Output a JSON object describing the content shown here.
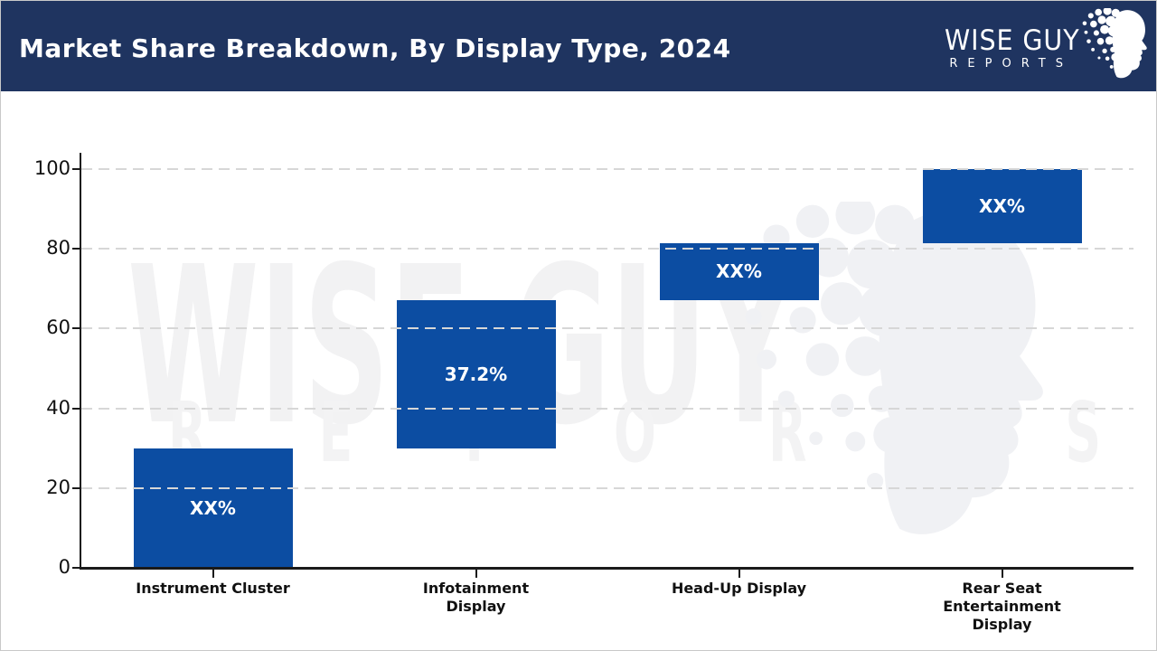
{
  "page": {
    "background": "#ffffff",
    "border_color": "#c9c9c9"
  },
  "header": {
    "title": "Market Share Breakdown, By Display Type, 2024",
    "background": "#1f3460",
    "logo": {
      "line1": "WISE GUY",
      "line2": "REPORTS"
    }
  },
  "watermark": {
    "line1": "WISE GUY",
    "line2": "R E P O R T S"
  },
  "chart_data": {
    "type": "bar",
    "subtype": "waterfall-floating-bars",
    "title": "Market Share Breakdown, By Display Type, 2024",
    "categories": [
      [
        "Instrument Cluster"
      ],
      [
        "Infotainment",
        "Display"
      ],
      [
        "Head-Up Display"
      ],
      [
        "Rear Seat",
        "Entertainment",
        "Display"
      ]
    ],
    "segments": [
      {
        "category": "Instrument Cluster",
        "start": 0,
        "end": 30,
        "value": 30,
        "value_label": "XX%"
      },
      {
        "category": "Infotainment Display",
        "start": 30,
        "end": 67.2,
        "value": 37.2,
        "value_label": "37.2%"
      },
      {
        "category": "Head-Up Display",
        "start": 67.2,
        "end": 81.4,
        "value": 14.2,
        "value_label": "XX%"
      },
      {
        "category": "Rear Seat Entertainment Display",
        "start": 81.4,
        "end": 100,
        "value": 18.6,
        "value_label": "XX%"
      }
    ],
    "yticks": [
      0,
      20,
      40,
      60,
      80,
      100
    ],
    "ylim": [
      0,
      104
    ],
    "xlabel": "",
    "ylabel": "",
    "bar_color": "#0c4da2",
    "bar_label_color": "#ffffff",
    "axis_color": "#1a1a1a",
    "grid": {
      "show": true,
      "orientation": "horizontal",
      "style": "dashed",
      "color": "#d7d7d7",
      "drawn_over_bars": true
    },
    "legend": null
  }
}
